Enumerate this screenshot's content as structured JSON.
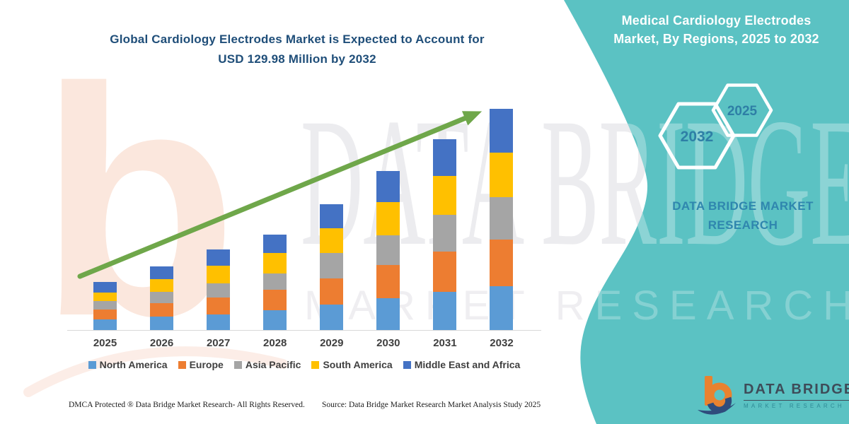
{
  "title": {
    "line1": "Global Cardiology Electrodes Market is Expected to Account for",
    "line2": "USD 129.98 Million by 2032"
  },
  "panel": {
    "accent_color": "#5BC2C3",
    "header_line1": "Medical Cardiology Electrodes",
    "header_line2": "Market, By Regions, 2025 to 2032",
    "hexagon_back_year": "2032",
    "hexagon_front_year": "2025",
    "brand_line1": "DATA BRIDGE MARKET",
    "brand_line2": "RESEARCH"
  },
  "watermarks": {
    "big": "DATA BRIDGE",
    "sub": "MARKET RESEARCH",
    "corner_b": "b"
  },
  "footer": {
    "dmca": "DMCA Protected ® Data Bridge Market Research-  All Rights Reserved.",
    "source": "Source: Data Bridge Market Research  Market Analysis Study 2025"
  },
  "logo": {
    "name": "DATA BRIDGE",
    "tagline": "MARKET RESEARCH"
  },
  "chart_data": {
    "type": "bar",
    "stacked": true,
    "title": "Global Cardiology Electrodes Market is Expected to Account for USD 129.98 Million by 2032",
    "unit": "USD Million",
    "categories": [
      "2025",
      "2026",
      "2027",
      "2028",
      "2029",
      "2030",
      "2031",
      "2032"
    ],
    "series": [
      {
        "name": "North America",
        "color": "#5B9BD5",
        "values": [
          6.2,
          7.8,
          9.2,
          11.8,
          15.0,
          18.6,
          22.5,
          25.8
        ]
      },
      {
        "name": "Europe",
        "color": "#ED7D31",
        "values": [
          6.0,
          7.8,
          10.0,
          11.8,
          15.5,
          19.5,
          23.4,
          27.2
        ]
      },
      {
        "name": "Asia Pacific",
        "color": "#A5A5A5",
        "values": [
          4.9,
          6.7,
          8.4,
          9.7,
          14.8,
          17.5,
          21.6,
          25.1
        ]
      },
      {
        "name": "South America",
        "color": "#FFC000",
        "values": [
          4.9,
          7.5,
          10.0,
          11.8,
          14.6,
          19.5,
          22.9,
          26.3
        ]
      },
      {
        "name": "Middle East and Africa",
        "color": "#4472C4",
        "values": [
          6.3,
          7.6,
          9.6,
          11.0,
          14.1,
          18.3,
          21.7,
          25.58
        ]
      }
    ],
    "totals": [
      28.3,
      37.4,
      47.2,
      56.1,
      74.0,
      93.4,
      112.1,
      129.98
    ],
    "ylim": [
      0,
      130
    ],
    "grid": false,
    "legend_position": "bottom",
    "trend_arrow": true,
    "trend_arrow_color": "#6FA74A"
  }
}
